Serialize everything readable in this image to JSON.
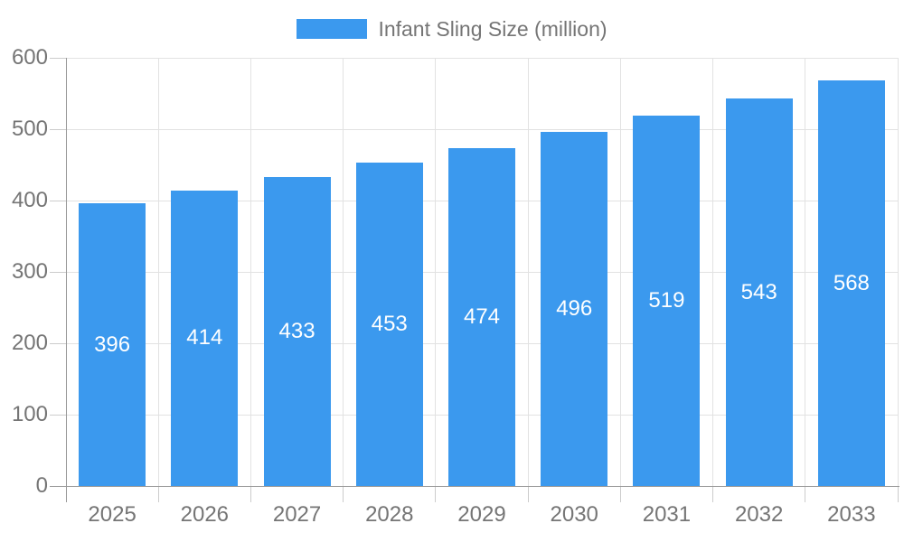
{
  "chart_data": {
    "type": "bar",
    "title": "Infant Sling Size (million)",
    "categories": [
      "2025",
      "2026",
      "2027",
      "2028",
      "2029",
      "2030",
      "2031",
      "2032",
      "2033"
    ],
    "series": [
      {
        "name": "Infant Sling Size (million)",
        "values": [
          396,
          414,
          433,
          453,
          474,
          496,
          519,
          543,
          568
        ]
      }
    ],
    "xlabel": "",
    "ylabel": "",
    "ylim": [
      0,
      600
    ],
    "yticks": [
      0,
      100,
      200,
      300,
      400,
      500,
      600
    ],
    "grid": true,
    "legend_position": "top-center",
    "value_label_position": "inside-center",
    "colors": {
      "bar": "#3B99EE",
      "axis_line": "#999999",
      "gridline": "#E2E2E2",
      "tick": "#CCCCCC",
      "axis_text": "#757575",
      "value_text": "#FFFFFF",
      "background": "#FFFFFF"
    }
  }
}
